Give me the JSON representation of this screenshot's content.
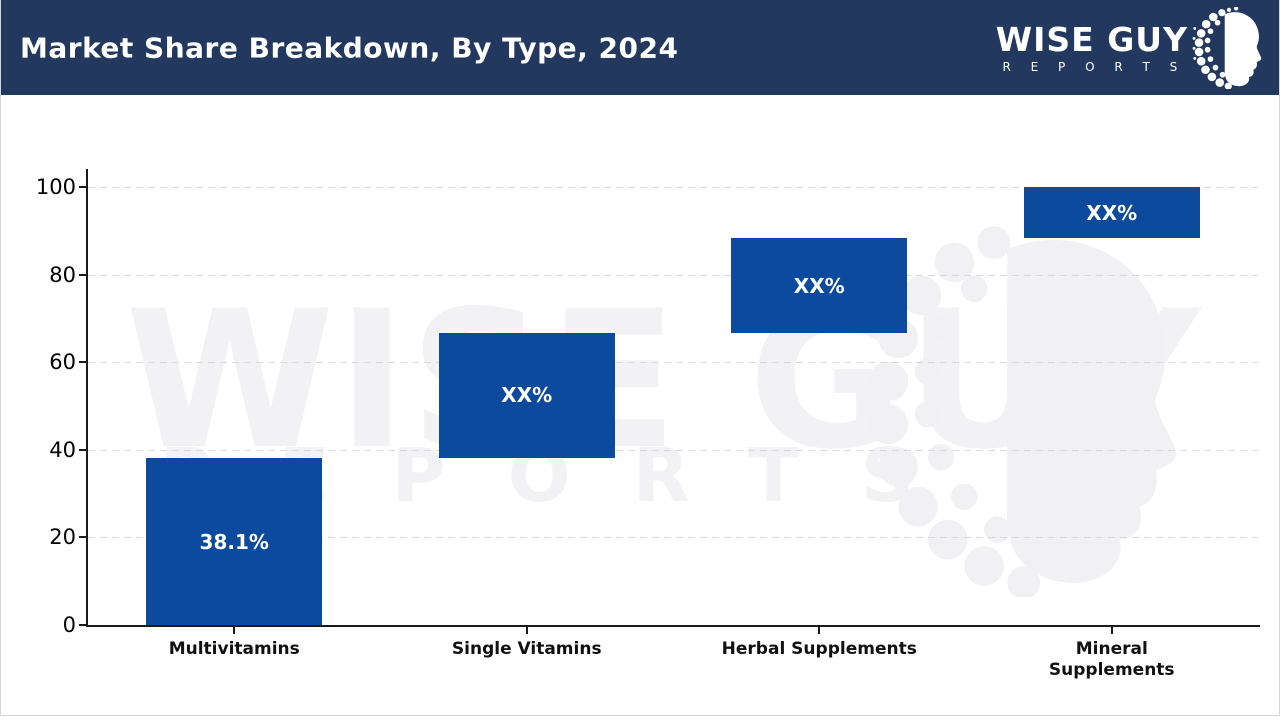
{
  "header": {
    "title": "Market Share Breakdown, By Type, 2024",
    "bg_color": "#22385f",
    "logo": {
      "name_line": "WISE GUY",
      "reports_line": "R E P O R T S"
    }
  },
  "watermark": {
    "name_line": "WISE GUY",
    "reports_line": "REPORTS"
  },
  "colors": {
    "bar": "#0c4a9e",
    "bar_label": "#ffffff",
    "grid": "#d9d9d9",
    "axis": "#1a1a1a",
    "header_bg": "#22385f",
    "watermark": "#f1f1f4"
  },
  "chart_data": {
    "type": "bar",
    "subtype": "waterfall",
    "title": "Market Share Breakdown, By Type, 2024",
    "categories": [
      "Multivitamins",
      "Single Vitamins",
      "Herbal Supplements",
      "Mineral Supplements"
    ],
    "xtick_labels": [
      "Multivitamins",
      "Single Vitamins",
      "Herbal Supplements",
      "Mineral\nSupplements"
    ],
    "segments": [
      {
        "category": "Multivitamins",
        "start": 0,
        "end": 38.1,
        "label": "38.1%"
      },
      {
        "category": "Single Vitamins",
        "start": 38.1,
        "end": 66.7,
        "label": "XX%"
      },
      {
        "category": "Herbal Supplements",
        "start": 66.7,
        "end": 88.3,
        "label": "XX%"
      },
      {
        "category": "Mineral Supplements",
        "start": 88.3,
        "end": 100,
        "label": "XX%"
      }
    ],
    "ylim": [
      0,
      100
    ],
    "yticks": [
      0,
      20,
      40,
      60,
      80,
      100
    ],
    "xlabel": "",
    "ylabel": "",
    "grid": "horizontal dashed",
    "legend": "none",
    "bar_color": "#0c4a9e",
    "bar_label_color": "#ffffff"
  }
}
